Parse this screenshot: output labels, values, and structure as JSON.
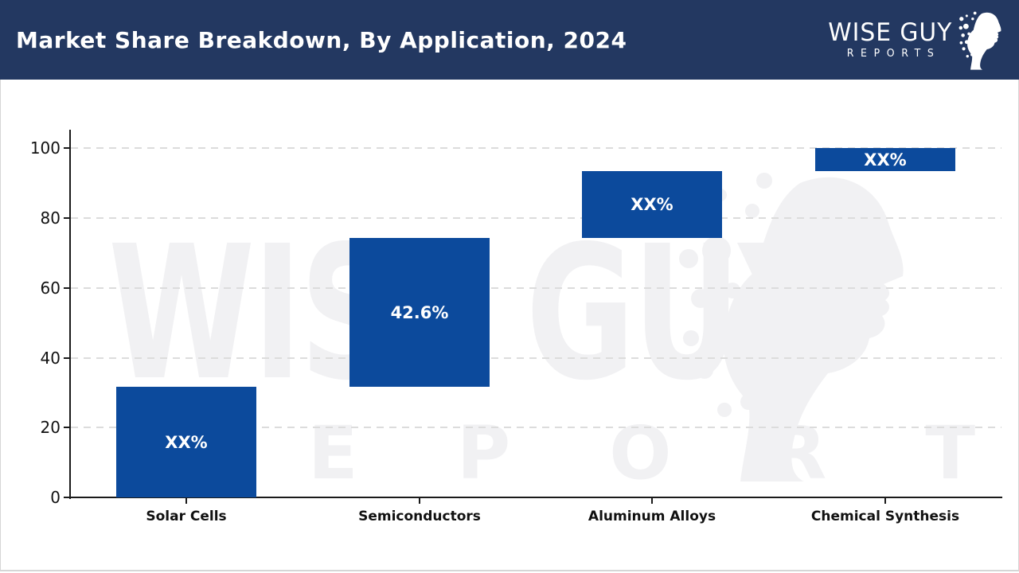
{
  "header": {
    "title": "Market Share Breakdown, By Application, 2024",
    "logo": {
      "line1": "WISE GUY",
      "line2": "REPORTS"
    }
  },
  "watermark": {
    "line1": "WISE GUY",
    "line2": "R E P O R T S"
  },
  "chart_data": {
    "type": "bar",
    "subtype": "waterfall-floating-bars",
    "title": "Market Share Breakdown, By Application, 2024",
    "categories": [
      "Solar Cells",
      "Semiconductors",
      "Aluminum Alloys",
      "Chemical Synthesis"
    ],
    "bars": [
      {
        "category": "Solar Cells",
        "start": 0,
        "end": 31.8,
        "value": 31.8,
        "label": "XX%"
      },
      {
        "category": "Semiconductors",
        "start": 31.8,
        "end": 74.4,
        "value": 42.6,
        "label": "42.6%"
      },
      {
        "category": "Aluminum Alloys",
        "start": 74.4,
        "end": 93.5,
        "value": 19.1,
        "label": "XX%"
      },
      {
        "category": "Chemical Synthesis",
        "start": 93.5,
        "end": 100,
        "value": 6.5,
        "label": "XX%"
      }
    ],
    "xlabel": "",
    "ylabel": "",
    "yticks": [
      0,
      20,
      40,
      60,
      80,
      100
    ],
    "ylim": [
      0,
      105
    ],
    "grid": "horizontal-dashed",
    "legend": "none",
    "colors": {
      "bar": "#0c4a9c",
      "bar_label": "#ffffff",
      "header_bg": "#233861",
      "axis": "#1a1a1a",
      "gridline": "#dcdcdc",
      "watermark": "#f1f1f3",
      "border": "#d6d6d6"
    }
  }
}
